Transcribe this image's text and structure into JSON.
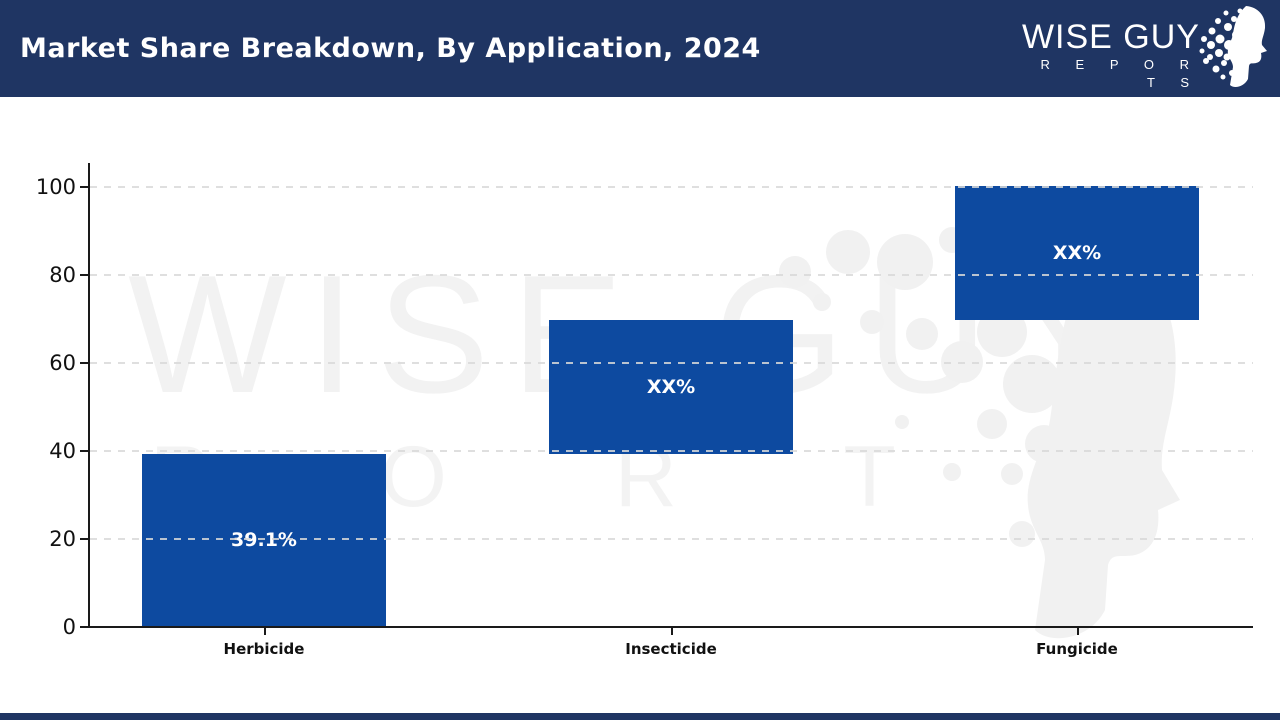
{
  "header": {
    "title": "Market Share Breakdown, By Application, 2024",
    "bg_color": "#1f3563",
    "logo": {
      "line1": "WISE GUY",
      "line2": "R E P O R T S",
      "icon": "dotted-face-profile"
    }
  },
  "footer": {
    "bg_color": "#1f3563"
  },
  "watermark": {
    "line1": "WISE GUY",
    "line2": "R  O  R  T  S",
    "color": "#f2f2f2"
  },
  "chart_data": {
    "type": "bar",
    "subtype": "waterfall",
    "title": "Market Share Breakdown, By Application, 2024",
    "xlabel": "",
    "ylabel": "",
    "categories": [
      "Herbicide",
      "Insecticide",
      "Fungicide"
    ],
    "segments": [
      {
        "category": "Herbicide",
        "start": 0,
        "end": 39.1,
        "label": "39.1%"
      },
      {
        "category": "Insecticide",
        "start": 39.1,
        "end": 69.6,
        "label": "XX%"
      },
      {
        "category": "Fungicide",
        "start": 69.6,
        "end": 100,
        "label": "XX%"
      }
    ],
    "yticks": [
      0,
      20,
      40,
      60,
      80,
      100
    ],
    "ylim": [
      0,
      105
    ],
    "grid": "horizontal-dashed",
    "grid_above_bars": true,
    "legend": "none",
    "bar_color": "#0d4aa0",
    "bar_label_color": "#ffffff",
    "axis_color": "#1a1a1a",
    "tick_label_color": "#111111"
  }
}
